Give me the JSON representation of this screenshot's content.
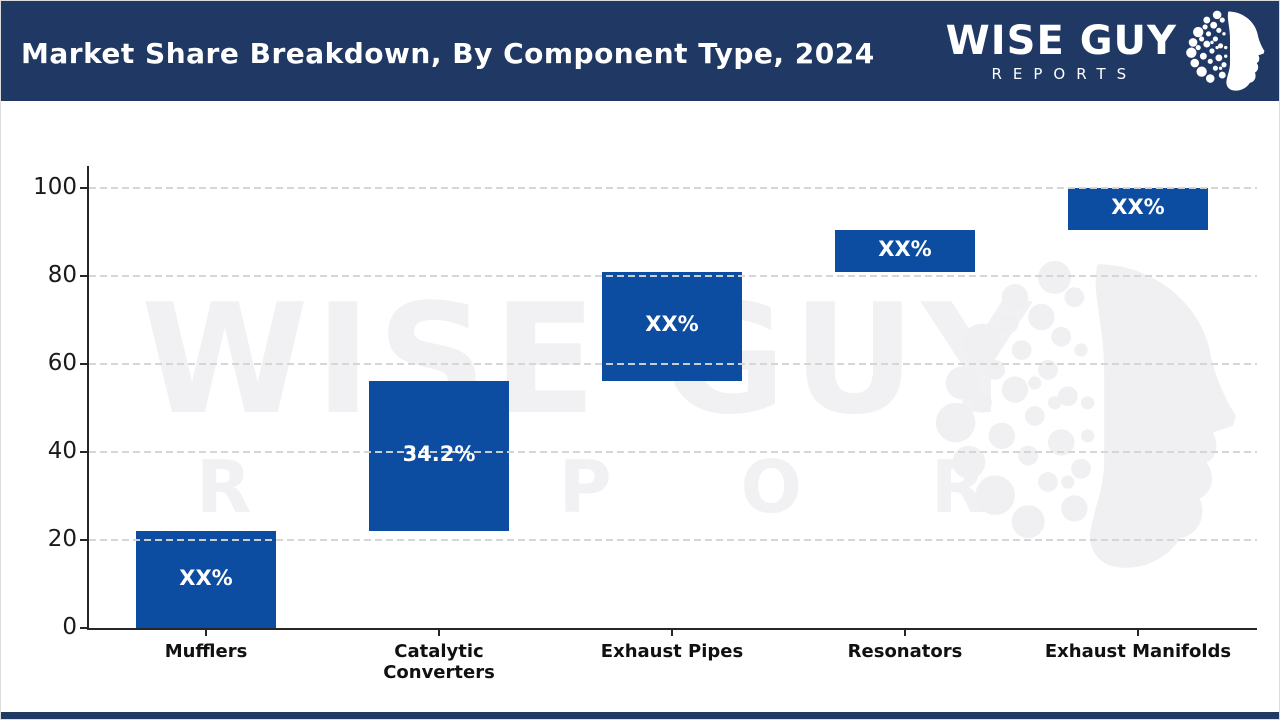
{
  "header": {
    "title": "Market Share Breakdown, By Component Type, 2024",
    "logo": {
      "wordmark": "WISE GUY",
      "subtext": "REPORTS"
    },
    "bg_color": "#1f3864"
  },
  "watermark": {
    "wordmark": "WISE GUY",
    "subtext": "R E P O R T S"
  },
  "footer": {
    "bg_color": "#1f3864"
  },
  "chart_data": {
    "type": "bar",
    "subtype": "waterfall",
    "title": "Market Share Breakdown, By Component Type, 2024",
    "xlabel": "",
    "ylabel": "",
    "categories": [
      "Mufflers",
      "Catalytic\nConverters",
      "Exhaust Pipes",
      "Resonators",
      "Exhaust Manifolds"
    ],
    "series": [
      {
        "name": "Market Share (%)",
        "segments": [
          {
            "category": "Mufflers",
            "start": 0,
            "end": 22,
            "value": 22,
            "label": "XX%"
          },
          {
            "category": "Catalytic Converters",
            "start": 22,
            "end": 56.2,
            "value": 34.2,
            "label": "34.2%"
          },
          {
            "category": "Exhaust Pipes",
            "start": 56.2,
            "end": 81,
            "value": 24.8,
            "label": "XX%"
          },
          {
            "category": "Resonators",
            "start": 81,
            "end": 90.5,
            "value": 9.5,
            "label": "XX%"
          },
          {
            "category": "Exhaust Manifolds",
            "start": 90.5,
            "end": 100,
            "value": 9.5,
            "label": "XX%"
          }
        ]
      }
    ],
    "yticks": [
      0,
      20,
      40,
      60,
      80,
      100
    ],
    "ylim": [
      0,
      105
    ],
    "grid": "horizontal-dashed",
    "legend": "none",
    "bar_color": "#0d4da1",
    "bar_label_color": "#ffffff"
  }
}
